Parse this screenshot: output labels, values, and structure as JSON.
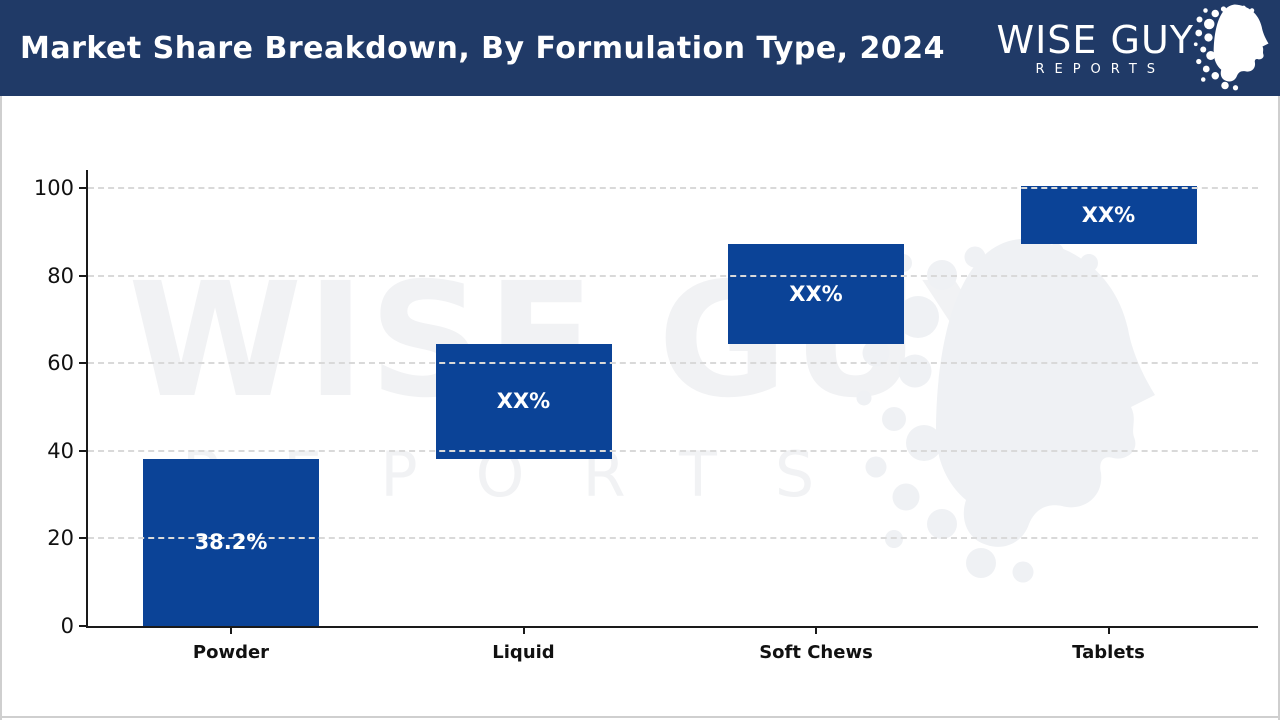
{
  "header": {
    "title": "Market Share Breakdown, By Formulation Type, 2024",
    "background_color": "#203A67",
    "logo": {
      "line1": "WISE GUY",
      "line2": "REPORTS"
    }
  },
  "watermark": {
    "line1": "WISE GUY",
    "line2": "REPORTS"
  },
  "chart_data": {
    "type": "bar",
    "subtype": "waterfall",
    "title": "Market Share Breakdown, By Formulation Type, 2024",
    "categories": [
      "Powder",
      "Liquid",
      "Soft Chews",
      "Tablets"
    ],
    "segments": [
      {
        "category": "Powder",
        "start": 0,
        "end": 38.2,
        "label": "38.2%"
      },
      {
        "category": "Liquid",
        "start": 38.2,
        "end": 64.4,
        "label": "XX%"
      },
      {
        "category": "Soft Chews",
        "start": 64.4,
        "end": 87.2,
        "label": "XX%"
      },
      {
        "category": "Tablets",
        "start": 87.2,
        "end": 100.5,
        "label": "XX%"
      }
    ],
    "yticks": [
      0,
      20,
      40,
      60,
      80,
      100
    ],
    "ylim": [
      0,
      105
    ],
    "xlabel": "",
    "ylabel": "",
    "grid": "dashed-horizontal-over-bars",
    "bar_color": "#0B4397",
    "bar_label_color": "#FFFFFF",
    "axis_color": "#1a1a1a"
  }
}
